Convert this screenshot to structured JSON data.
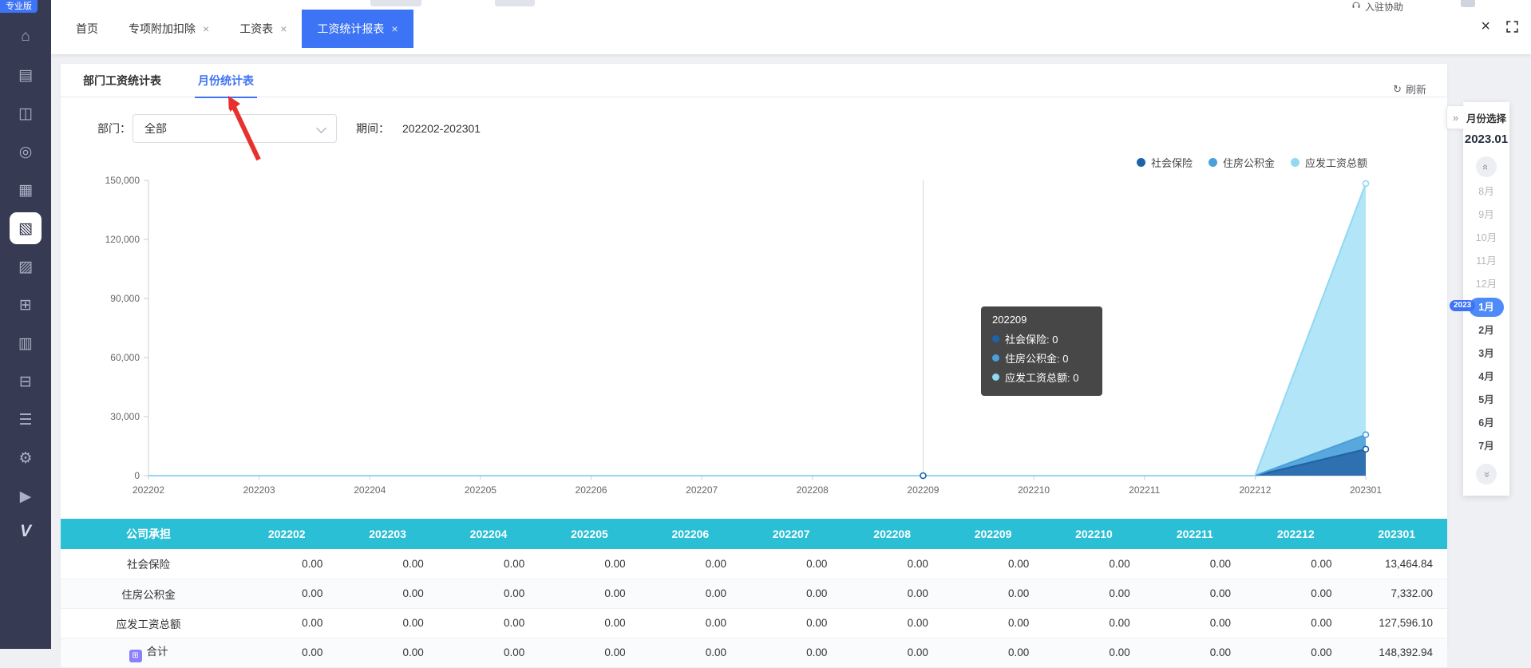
{
  "app": {
    "edition_badge": "专业版",
    "help_label": "入驻协助",
    "logo": "V"
  },
  "sidebar": {
    "icons": [
      {
        "name": "home",
        "glyph": "⌂",
        "active": false
      },
      {
        "name": "vouchers",
        "glyph": "▤",
        "active": false
      },
      {
        "name": "analysis",
        "glyph": "◫",
        "active": false
      },
      {
        "name": "funds",
        "glyph": "◎",
        "active": false
      },
      {
        "name": "invoices",
        "glyph": "▦",
        "active": false
      },
      {
        "name": "payroll-report",
        "glyph": "▧",
        "active": true
      },
      {
        "name": "inventory",
        "glyph": "▨",
        "active": false
      },
      {
        "name": "assets",
        "glyph": "⊞",
        "active": false
      },
      {
        "name": "ledgers",
        "glyph": "▥",
        "active": false
      },
      {
        "name": "documents",
        "glyph": "⊟",
        "active": false
      },
      {
        "name": "contacts",
        "glyph": "☰",
        "active": false
      },
      {
        "name": "settings",
        "glyph": "⚙",
        "active": false
      },
      {
        "name": "apps",
        "glyph": "▶",
        "active": false
      }
    ]
  },
  "tabs": {
    "close_icon": "×",
    "items": [
      {
        "label": "首页",
        "closable": false,
        "active": false
      },
      {
        "label": "专项附加扣除",
        "closable": true,
        "active": false
      },
      {
        "label": "工资表",
        "closable": true,
        "active": false
      },
      {
        "label": "工资统计报表",
        "closable": true,
        "active": true
      }
    ]
  },
  "report": {
    "subtabs": [
      {
        "label": "部门工资统计表",
        "active": false
      },
      {
        "label": "月份统计表",
        "active": true
      }
    ],
    "refresh_icon": "↻",
    "refresh_label": "刷新",
    "filters": {
      "dept_label": "部门：",
      "dept_value": "全部",
      "period_label": "期间：",
      "period_value": "202202-202301"
    }
  },
  "chart_data": {
    "type": "area",
    "stacked": true,
    "categories": [
      "202202",
      "202203",
      "202204",
      "202205",
      "202206",
      "202207",
      "202208",
      "202209",
      "202210",
      "202211",
      "202212",
      "202301"
    ],
    "series": [
      {
        "name": "社会保险",
        "color": "#1c64a9",
        "fill": "rgba(28,100,169,0.92)",
        "values": [
          0,
          0,
          0,
          0,
          0,
          0,
          0,
          0,
          0,
          0,
          0,
          13464.84
        ]
      },
      {
        "name": "住房公积金",
        "color": "#4aa0da",
        "fill": "rgba(74,160,218,0.92)",
        "values": [
          0,
          0,
          0,
          0,
          0,
          0,
          0,
          0,
          0,
          0,
          0,
          7332.0
        ]
      },
      {
        "name": "应发工资总额",
        "color": "#8fd9f2",
        "fill": "rgba(160,222,246,0.8)",
        "values": [
          0,
          0,
          0,
          0,
          0,
          0,
          0,
          0,
          0,
          0,
          0,
          127596.1
        ]
      }
    ],
    "ylim": [
      0,
      150000
    ],
    "yticks": [
      "0",
      "30,000",
      "60,000",
      "90,000",
      "120,000",
      "150,000"
    ],
    "grid": false,
    "legend_position": "top-right",
    "tooltip": {
      "x_index": 7,
      "title": "202209",
      "rows": [
        {
          "name": "社会保险",
          "value": "0"
        },
        {
          "name": "住房公积金",
          "value": "0"
        },
        {
          "name": "应发工资总额",
          "value": "0"
        }
      ]
    }
  },
  "table": {
    "header": [
      "公司承担",
      "202202",
      "202203",
      "202204",
      "202205",
      "202206",
      "202207",
      "202208",
      "202209",
      "202210",
      "202211",
      "202212",
      "202301"
    ],
    "rows": [
      {
        "label": "社会保险",
        "icon": "",
        "values": [
          "0.00",
          "0.00",
          "0.00",
          "0.00",
          "0.00",
          "0.00",
          "0.00",
          "0.00",
          "0.00",
          "0.00",
          "0.00",
          "13,464.84"
        ]
      },
      {
        "label": "住房公积金",
        "icon": "",
        "values": [
          "0.00",
          "0.00",
          "0.00",
          "0.00",
          "0.00",
          "0.00",
          "0.00",
          "0.00",
          "0.00",
          "0.00",
          "0.00",
          "7,332.00"
        ]
      },
      {
        "label": "应发工资总额",
        "icon": "",
        "values": [
          "0.00",
          "0.00",
          "0.00",
          "0.00",
          "0.00",
          "0.00",
          "0.00",
          "0.00",
          "0.00",
          "0.00",
          "0.00",
          "127,596.10"
        ]
      },
      {
        "label": "合计",
        "icon": "⊞",
        "values": [
          "0.00",
          "0.00",
          "0.00",
          "0.00",
          "0.00",
          "0.00",
          "0.00",
          "0.00",
          "0.00",
          "0.00",
          "0.00",
          "148,392.94"
        ]
      }
    ]
  },
  "month_panel": {
    "collapse_icon": "»",
    "scroll_icon": "«",
    "title": "月份选择",
    "current": "2023.01",
    "year_badge": "2023",
    "months": [
      {
        "label": "8月",
        "state": "muted"
      },
      {
        "label": "9月",
        "state": "muted"
      },
      {
        "label": "10月",
        "state": "muted"
      },
      {
        "label": "11月",
        "state": "muted"
      },
      {
        "label": "12月",
        "state": "muted"
      },
      {
        "label": "1月",
        "state": "active"
      },
      {
        "label": "2月",
        "state": "normal"
      },
      {
        "label": "3月",
        "state": "normal"
      },
      {
        "label": "4月",
        "state": "normal"
      },
      {
        "label": "5月",
        "state": "normal"
      },
      {
        "label": "6月",
        "state": "normal"
      },
      {
        "label": "7月",
        "state": "normal"
      }
    ]
  }
}
